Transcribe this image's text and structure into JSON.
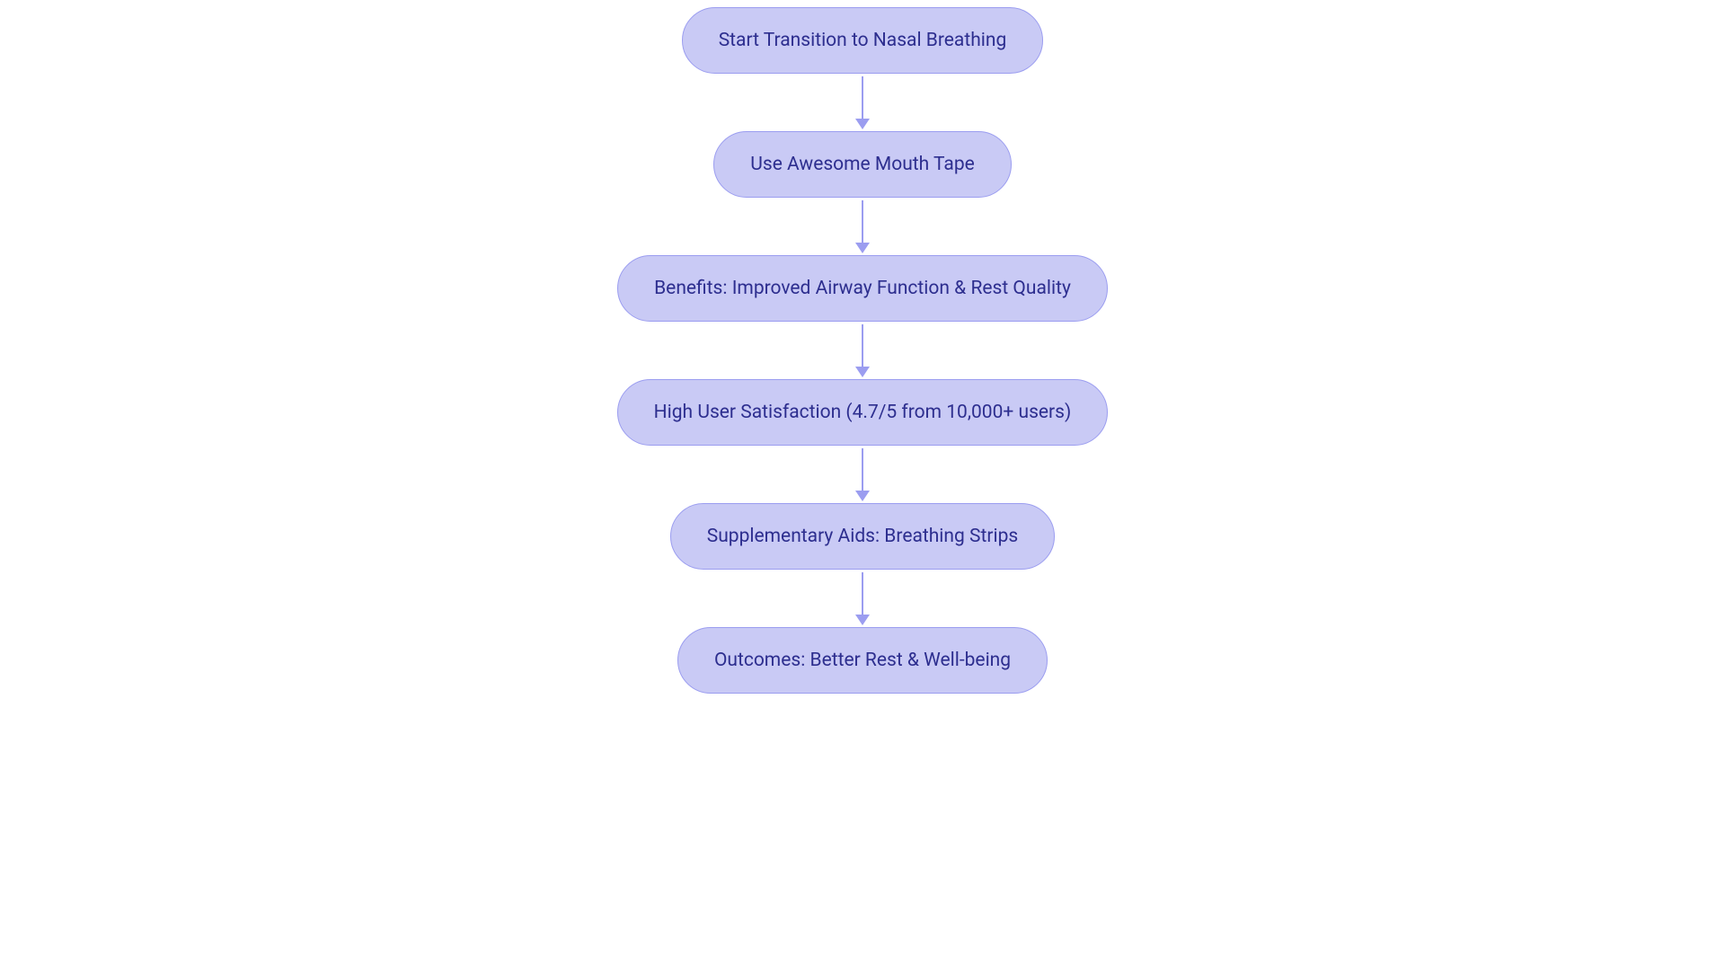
{
  "flowchart": {
    "type": "flowchart",
    "background_color": "#ffffff",
    "node_fill": "#c9caf5",
    "node_border": "#9b9df0",
    "node_text_color": "#2d2e8f",
    "node_fontsize": 21,
    "node_border_radius": 999,
    "node_border_width": 1.5,
    "arrow_color": "#9b9df0",
    "arrow_line_width": 2,
    "arrow_head_size": 12,
    "vertical_gap": 64,
    "nodes": [
      {
        "id": "n1",
        "label": "Start Transition to Nasal Breathing"
      },
      {
        "id": "n2",
        "label": "Use Awesome Mouth Tape"
      },
      {
        "id": "n3",
        "label": "Benefits: Improved Airway Function & Rest Quality"
      },
      {
        "id": "n4",
        "label": "High User Satisfaction (4.7/5 from 10,000+ users)"
      },
      {
        "id": "n5",
        "label": "Supplementary Aids: Breathing Strips"
      },
      {
        "id": "n6",
        "label": "Outcomes: Better Rest & Well-being"
      }
    ],
    "edges": [
      {
        "from": "n1",
        "to": "n2"
      },
      {
        "from": "n2",
        "to": "n3"
      },
      {
        "from": "n3",
        "to": "n4"
      },
      {
        "from": "n4",
        "to": "n5"
      },
      {
        "from": "n5",
        "to": "n6"
      }
    ]
  }
}
